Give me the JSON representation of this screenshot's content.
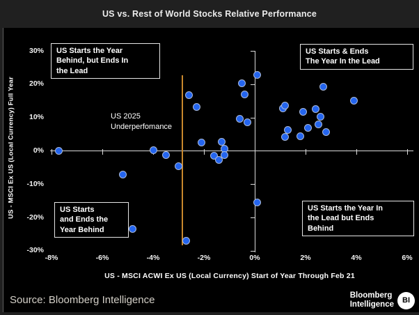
{
  "header": {
    "title": "US vs. Rest of World Stocks Relative Performance"
  },
  "chart_data": {
    "type": "scatter",
    "title": "US vs. Rest of World Stocks Relative Performance",
    "xlabel": "US - MSCI ACWI Ex US (Local Currency) Start of Year Through Feb 21",
    "ylabel": "US - MSCI Ex US (Local Currency) Full Year",
    "xlim": [
      -8,
      6
    ],
    "ylim": [
      -30,
      30
    ],
    "x_tick_values": [
      -8,
      -6,
      -4,
      -2,
      0,
      2,
      4,
      6
    ],
    "x_tick_labels": [
      "-8%",
      "-6%",
      "-4%",
      "-2%",
      "0%",
      "2%",
      "4%",
      "6%"
    ],
    "y_tick_values": [
      30,
      20,
      10,
      0,
      -10,
      -20,
      -30
    ],
    "y_tick_labels": [
      "30%",
      "20%",
      "10%",
      "0%",
      "-10%",
      "-20%",
      "-30%"
    ],
    "grid": false,
    "point_color": "#2465ef",
    "point_border_color": "#a9b9da",
    "axis_color": "#dcdcdc",
    "points": [
      [
        -7.7,
        0.0
      ],
      [
        -5.2,
        -7.1
      ],
      [
        -4.8,
        -23.4
      ],
      [
        -4.0,
        0.2
      ],
      [
        -3.5,
        -1.3
      ],
      [
        -3.0,
        -4.5
      ],
      [
        -2.7,
        -27.0
      ],
      [
        -2.6,
        16.7
      ],
      [
        -2.3,
        13.2
      ],
      [
        -2.1,
        2.5
      ],
      [
        -1.6,
        -1.5
      ],
      [
        -1.4,
        -2.7
      ],
      [
        -1.3,
        2.7
      ],
      [
        -1.2,
        0.6
      ],
      [
        -1.2,
        -1.3
      ],
      [
        -0.6,
        9.6
      ],
      [
        -0.5,
        20.3
      ],
      [
        -0.4,
        17.0
      ],
      [
        -0.3,
        8.6
      ],
      [
        0.1,
        22.8
      ],
      [
        0.1,
        -15.5
      ],
      [
        1.1,
        12.8
      ],
      [
        1.2,
        13.6
      ],
      [
        1.2,
        4.2
      ],
      [
        1.3,
        6.3
      ],
      [
        1.8,
        4.4
      ],
      [
        1.9,
        11.7
      ],
      [
        2.1,
        6.9
      ],
      [
        2.4,
        12.6
      ],
      [
        2.5,
        7.9
      ],
      [
        2.6,
        10.3
      ],
      [
        2.7,
        19.2
      ],
      [
        2.8,
        5.6
      ],
      [
        3.9,
        15.1
      ]
    ],
    "reference_line": {
      "x": -2.85,
      "color": "#c9882d",
      "label": "US 2025\nUnderperfomance"
    },
    "annotations": {
      "top_left": {
        "text": "US Starts the Year\nBehind, but Ends In\nthe Lead"
      },
      "top_right": {
        "text": "US Starts & Ends\nThe Year In the Lead"
      },
      "bottom_left": {
        "text": "US Starts\nand Ends the\nYear Behind"
      },
      "bottom_right": {
        "text": "US Starts the Year In\nthe Lead but Ends\nBehind"
      }
    }
  },
  "footer": {
    "source": "Source: Bloomberg Intelligence",
    "brand_line1": "Bloomberg",
    "brand_line2": "Intelligence",
    "brand_badge": "BI"
  }
}
